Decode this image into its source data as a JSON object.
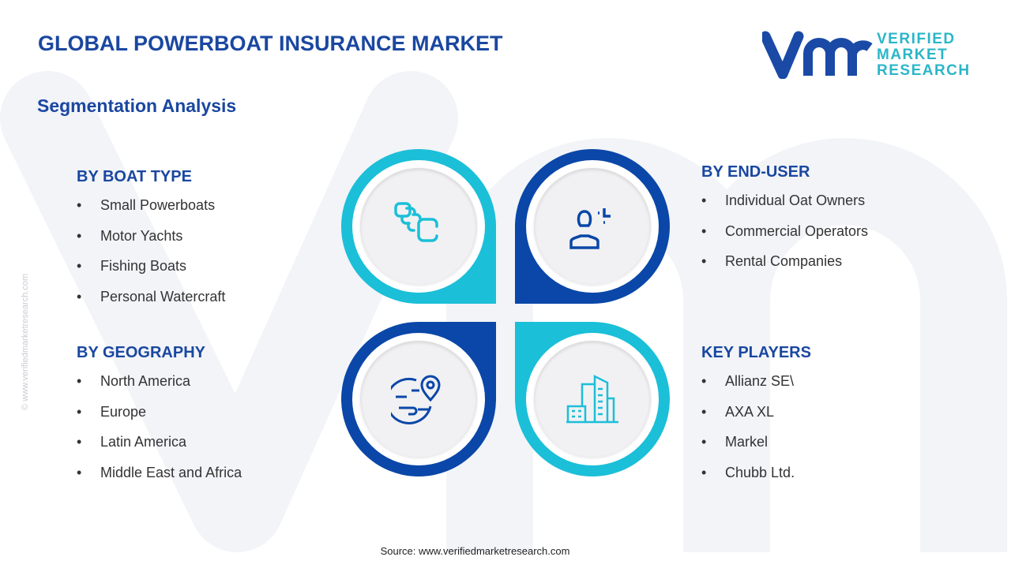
{
  "title": "GLOBAL POWERBOAT INSURANCE MARKET",
  "subtitle": "Segmentation Analysis",
  "logo": {
    "line1": "VERIFIED",
    "line2": "MARKET",
    "line3": "RESEARCH",
    "mark": "vmr"
  },
  "watermark": "© www.verifiedmarketresearch.com",
  "colors": {
    "primary": "#0a47a8",
    "accent": "#1bbfd8",
    "title": "#1a47a0"
  },
  "segments": [
    {
      "heading": "BY BOAT TYPE",
      "icon": "boat-type-icon",
      "items": [
        "Small Powerboats",
        "Motor Yachts",
        "Fishing Boats",
        "Personal Watercraft"
      ]
    },
    {
      "heading": "BY END-USER",
      "icon": "user-icon",
      "items": [
        "Individual Oat Owners",
        "Commercial Operators",
        "Rental Companies"
      ]
    },
    {
      "heading": "BY GEOGRAPHY",
      "icon": "globe-pin-icon",
      "items": [
        "North America",
        "Europe",
        "Latin America",
        "Middle East and Africa"
      ]
    },
    {
      "heading": "KEY PLAYERS",
      "icon": "buildings-icon",
      "items": [
        "Allianz SE\\",
        "AXA XL",
        "Markel",
        "Chubb Ltd."
      ]
    }
  ],
  "source": "Source:  www.verifiedmarketresearch.com"
}
